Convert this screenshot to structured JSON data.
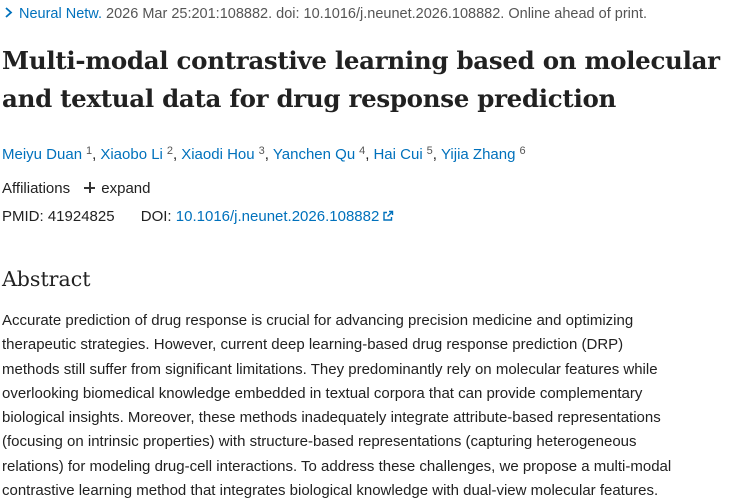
{
  "citation": {
    "journal": "Neural Netw.",
    "details": " 2026 Mar 25:201:108882. doi: 10.1016/j.neunet.2026.108882. Online ahead of print."
  },
  "title": {
    "line1": "Multi-modal contrastive learning based on molecular",
    "line2": "and textual data for drug response prediction"
  },
  "authors": [
    {
      "name": "Meiyu Duan",
      "aff": "1"
    },
    {
      "name": "Xiaobo Li",
      "aff": "2"
    },
    {
      "name": "Xiaodi Hou",
      "aff": "3"
    },
    {
      "name": "Yanchen Qu",
      "aff": "4"
    },
    {
      "name": "Hai Cui",
      "aff": "5"
    },
    {
      "name": "Yijia Zhang",
      "aff": "6"
    }
  ],
  "affiliations": {
    "label": "Affiliations",
    "expand_label": "expand"
  },
  "ids": {
    "pmid_label": "PMID:",
    "pmid": "41924825",
    "doi_label": "DOI:",
    "doi": "10.1016/j.neunet.2026.108882"
  },
  "abstract": {
    "heading": "Abstract",
    "lines": [
      "Accurate prediction of drug response is crucial for advancing precision medicine and optimizing",
      "therapeutic strategies. However, current deep learning-based drug response prediction (DRP)",
      "methods still suffer from significant limitations. They predominantly rely on molecular features while",
      "overlooking biomedical knowledge embedded in textual corpora that can provide complementary",
      "biological insights. Moreover, these methods inadequately integrate attribute-based representations",
      "(focusing on intrinsic properties) with structure-based representations (capturing heterogeneous",
      "relations) for modeling drug-cell interactions. To address these challenges, we propose a multi-modal",
      "contrastive learning method that integrates biological knowledge with dual-view molecular features."
    ]
  },
  "colors": {
    "link": "#0071bc",
    "text": "#212121",
    "muted": "#555555"
  },
  "icons": {
    "citation": "chevron-right-icon",
    "expand": "plus-icon",
    "doi": "external-link-icon"
  }
}
